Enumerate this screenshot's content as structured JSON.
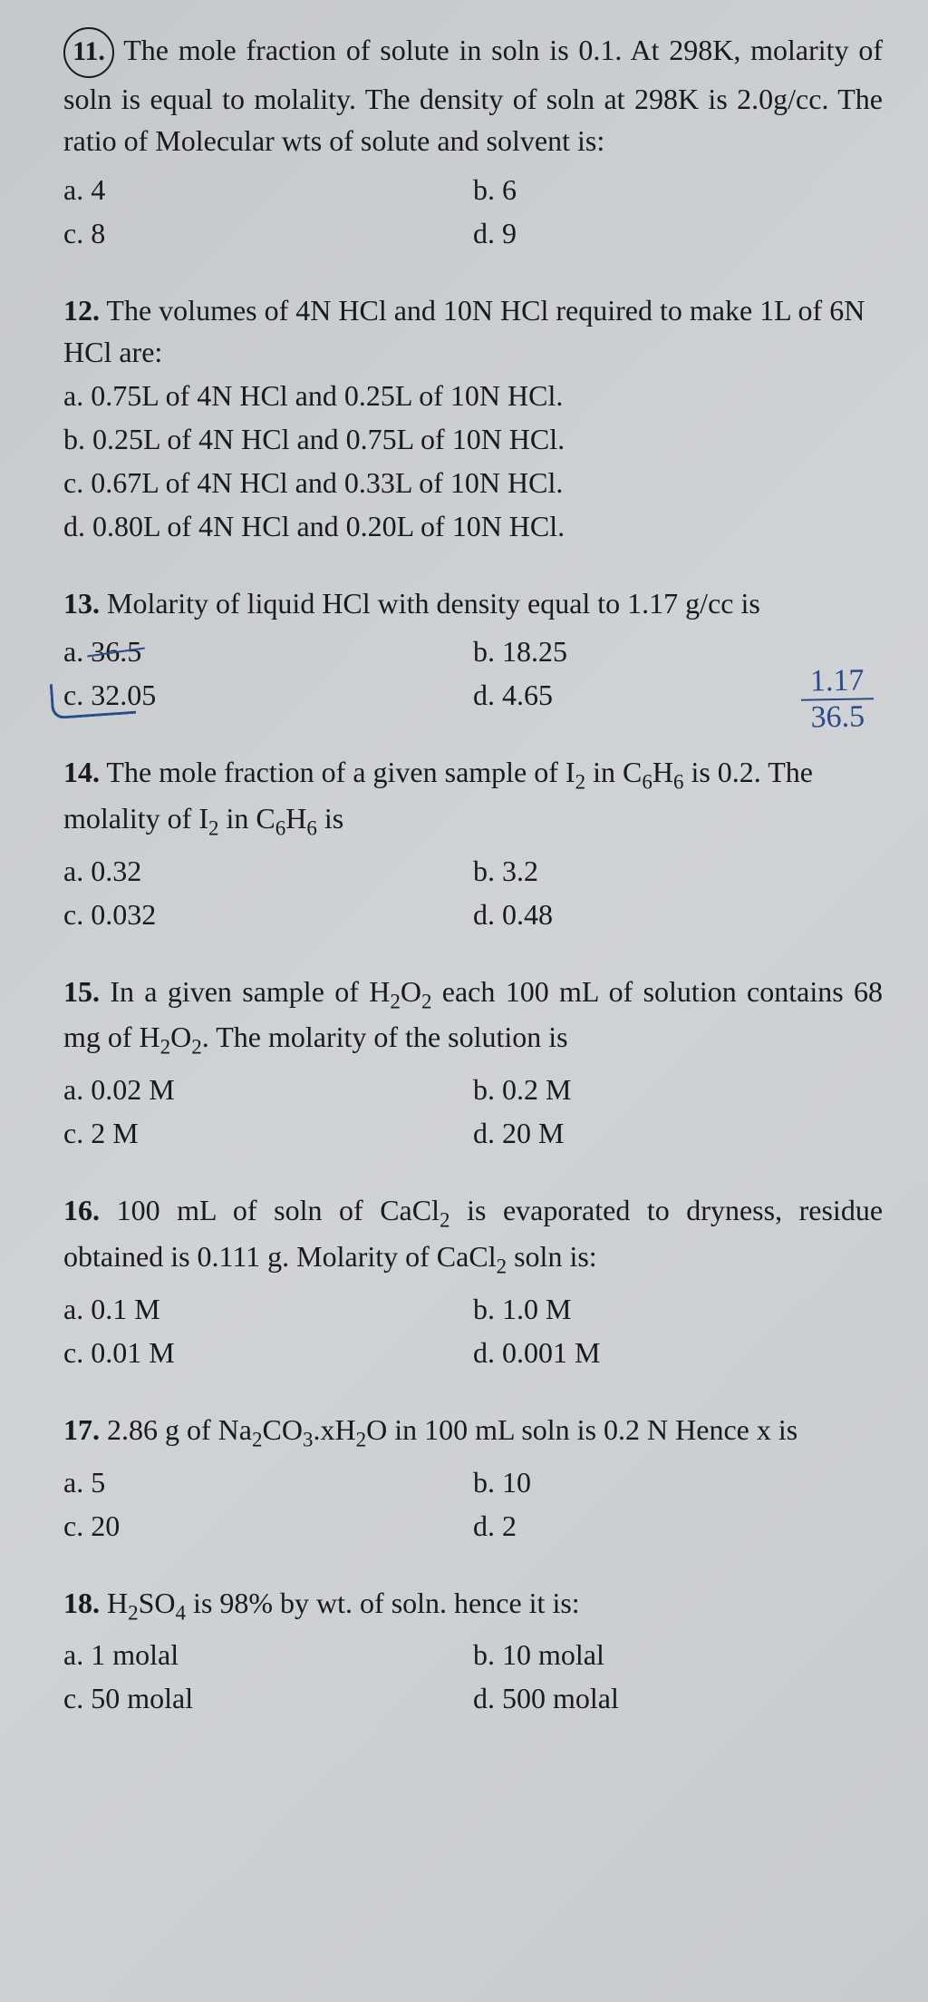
{
  "handwriting": {
    "q13_numer": "1.17",
    "q13_denom": "36.5"
  },
  "questions": [
    {
      "num": "11.",
      "circled": true,
      "text": "The mole fraction of solute in soln is 0.1. At 298K, molarity of soln is equal to molality. The density of soln at 298K is 2.0g/cc. The ratio of Molecular wts of solute and solvent is:",
      "layout": "two-col",
      "options": [
        {
          "label": "a.",
          "text": "4"
        },
        {
          "label": "b.",
          "text": "6"
        },
        {
          "label": "c.",
          "text": "8"
        },
        {
          "label": "d.",
          "text": "9"
        }
      ]
    },
    {
      "num": "12.",
      "text": "The volumes of 4N HCl and 10N HCl required to make 1L of 6N HCl are:",
      "layout": "full",
      "options": [
        {
          "label": "a.",
          "text": "0.75L of 4N HCl and 0.25L of 10N HCl."
        },
        {
          "label": "b.",
          "text": "0.25L of 4N HCl and 0.75L of 10N HCl."
        },
        {
          "label": "c.",
          "text": "0.67L of 4N HCl and 0.33L of 10N HCl."
        },
        {
          "label": "d.",
          "text": "0.80L of 4N HCl and 0.20L of 10N HCl."
        }
      ]
    },
    {
      "num": "13.",
      "text": "Molarity of liquid HCl with density equal to 1.17 g/cc is",
      "layout": "two-col",
      "options": [
        {
          "label": "a.",
          "text": "36.5",
          "strike": true
        },
        {
          "label": "b.",
          "text": "18.25"
        },
        {
          "label": "c.",
          "text": "32.05",
          "correct": true
        },
        {
          "label": "d.",
          "text": "4.65"
        }
      ]
    },
    {
      "num": "14.",
      "text_html": "The mole fraction of a given sample of I<span class=\"sub\">2</span> in C<span class=\"sub\">6</span>H<span class=\"sub\">6</span> is 0.2. The molality of I<span class=\"sub\">2</span> in C<span class=\"sub\">6</span>H<span class=\"sub\">6</span> is",
      "layout": "two-col",
      "options": [
        {
          "label": "a.",
          "text": "0.32"
        },
        {
          "label": "b.",
          "text": "3.2"
        },
        {
          "label": "c.",
          "text": "0.032"
        },
        {
          "label": "d.",
          "text": "0.48"
        }
      ]
    },
    {
      "num": "15.",
      "text_html": "In a given sample of H<span class=\"sub\">2</span>O<span class=\"sub\">2</span> each 100 mL of solution contains 68 mg of H<span class=\"sub\">2</span>O<span class=\"sub\">2</span>. The molarity of the solution is",
      "layout": "two-col",
      "options": [
        {
          "label": "a.",
          "text": "0.02 M"
        },
        {
          "label": "b.",
          "text": "0.2 M"
        },
        {
          "label": "c.",
          "text": "2 M"
        },
        {
          "label": "d.",
          "text": "20 M"
        }
      ]
    },
    {
      "num": "16.",
      "text_html": "100 mL of soln of CaCl<span class=\"sub\">2</span> is evaporated to dryness, residue obtained is 0.111 g. Molarity of CaCl<span class=\"sub\">2</span> soln is:",
      "layout": "two-col",
      "options": [
        {
          "label": "a.",
          "text": "0.1 M"
        },
        {
          "label": "b.",
          "text": "1.0 M"
        },
        {
          "label": "c.",
          "text": "0.01 M"
        },
        {
          "label": "d.",
          "text": "0.001 M"
        }
      ]
    },
    {
      "num": "17.",
      "text_html": "2.86 g of Na<span class=\"sub\">2</span>CO<span class=\"sub\">3</span>.xH<span class=\"sub\">2</span>O in 100 mL soln is 0.2 N Hence x is",
      "layout": "two-col",
      "options": [
        {
          "label": "a.",
          "text": "5"
        },
        {
          "label": "b.",
          "text": "10"
        },
        {
          "label": "c.",
          "text": "20"
        },
        {
          "label": "d.",
          "text": "2"
        }
      ]
    },
    {
      "num": "18.",
      "text_html": "H<span class=\"sub\">2</span>SO<span class=\"sub\">4</span> is 98% by wt. of soln. hence it is:",
      "layout": "two-col",
      "options": [
        {
          "label": "a.",
          "text": "1 molal"
        },
        {
          "label": "b.",
          "text": "10 molal"
        },
        {
          "label": "c.",
          "text": "50 molal"
        },
        {
          "label": "d.",
          "text": "500 molal"
        }
      ]
    }
  ]
}
